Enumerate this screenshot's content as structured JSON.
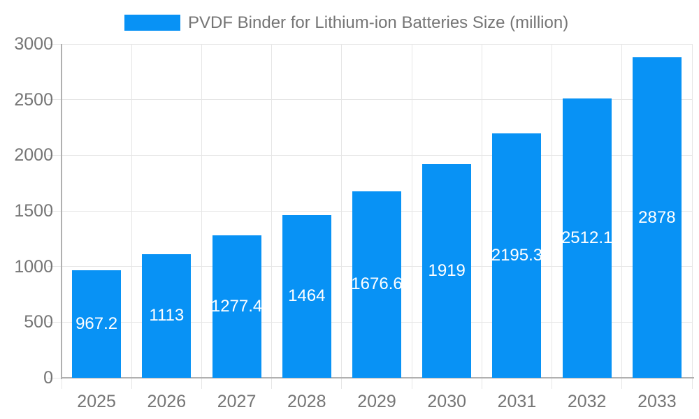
{
  "chart_data": {
    "type": "bar",
    "title": "PVDF Binder for Lithium-ion Batteries Size (million)",
    "categories": [
      "2025",
      "2026",
      "2027",
      "2028",
      "2029",
      "2030",
      "2031",
      "2032",
      "2033"
    ],
    "series": [
      {
        "name": "PVDF Binder for Lithium-ion Batteries Size (million)",
        "values": [
          967.2,
          1113,
          1277.4,
          1464,
          1676.6,
          1919,
          2195.3,
          2512.1,
          2878
        ]
      }
    ],
    "value_labels": [
      "967.2",
      "1113",
      "1277.4",
      "1464",
      "1676.6",
      "1919",
      "2195.3",
      "2512.1",
      "2878"
    ],
    "xlabel": "",
    "ylabel": "",
    "ylim": [
      0,
      3000
    ],
    "ytick_labels": [
      "0",
      "500",
      "1000",
      "1500",
      "2000",
      "2500",
      "3000"
    ],
    "grid": true,
    "legend_position": "top",
    "value_label_position": "inside-center",
    "colors": {
      "bar": "#0892f5",
      "axis_text": "#757575",
      "grid_line": "#e6e6e6",
      "axis_line": "#b0b0b0",
      "value_label": "#ffffff",
      "background": "#ffffff"
    }
  }
}
